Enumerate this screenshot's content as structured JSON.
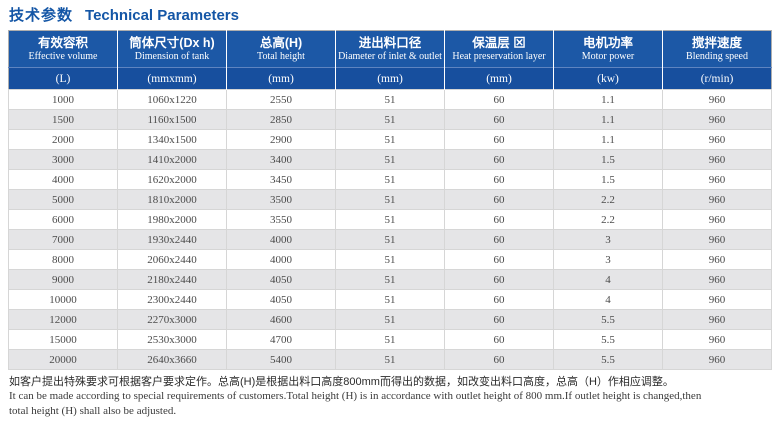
{
  "title": {
    "zh": "技术参数",
    "en": "Technical Parameters"
  },
  "colors": {
    "header_blue": "#1c58a6",
    "unit_band_blue": "#174f9e",
    "title_blue": "#1456a6",
    "row_alt_gray": "#e5e5e7",
    "cell_text": "#4b4b4b"
  },
  "table": {
    "columns": [
      {
        "zh": "有效容积",
        "en": "Effective volume",
        "unit": "(L)"
      },
      {
        "zh": "筒体尺寸(Dx h)",
        "en": "Dimension of tank",
        "unit": "(mmxmm)"
      },
      {
        "zh": "总高(H)",
        "en": "Total height",
        "unit": "(mm)"
      },
      {
        "zh": "进出料口径",
        "en": "Diameter of inlet & outlet",
        "unit": "(mm)"
      },
      {
        "zh": "保温层 ⊠",
        "en": "Heat preservation layer",
        "unit": "(mm)"
      },
      {
        "zh": "电机功率",
        "en": "Motor power",
        "unit": "(kw)"
      },
      {
        "zh": "搅拌速度",
        "en": "Blending speed",
        "unit": "(r/min)"
      }
    ],
    "rows": [
      [
        "1000",
        "1060x1220",
        "2550",
        "51",
        "60",
        "1.1",
        "960"
      ],
      [
        "1500",
        "1160x1500",
        "2850",
        "51",
        "60",
        "1.1",
        "960"
      ],
      [
        "2000",
        "1340x1500",
        "2900",
        "51",
        "60",
        "1.1",
        "960"
      ],
      [
        "3000",
        "1410x2000",
        "3400",
        "51",
        "60",
        "1.5",
        "960"
      ],
      [
        "4000",
        "1620x2000",
        "3450",
        "51",
        "60",
        "1.5",
        "960"
      ],
      [
        "5000",
        "1810x2000",
        "3500",
        "51",
        "60",
        "2.2",
        "960"
      ],
      [
        "6000",
        "1980x2000",
        "3550",
        "51",
        "60",
        "2.2",
        "960"
      ],
      [
        "7000",
        "1930x2440",
        "4000",
        "51",
        "60",
        "3",
        "960"
      ],
      [
        "8000",
        "2060x2440",
        "4000",
        "51",
        "60",
        "3",
        "960"
      ],
      [
        "9000",
        "2180x2440",
        "4050",
        "51",
        "60",
        "4",
        "960"
      ],
      [
        "10000",
        "2300x2440",
        "4050",
        "51",
        "60",
        "4",
        "960"
      ],
      [
        "12000",
        "2270x3000",
        "4600",
        "51",
        "60",
        "5.5",
        "960"
      ],
      [
        "15000",
        "2530x3000",
        "4700",
        "51",
        "60",
        "5.5",
        "960"
      ],
      [
        "20000",
        "2640x3660",
        "5400",
        "51",
        "60",
        "5.5",
        "960"
      ]
    ]
  },
  "footnote": {
    "zh": "如客户提出特殊要求可根据客户要求定作。总高(H)是根据出料口高度800mm而得出的数据，如改变出料口高度，总高（H）作相应调整。",
    "en_line1": "It can be made according to special requirements of customers.Total height (H) is in accordance with outlet height of 800 mm.If outlet height is changed,then",
    "en_line2": "total height (H) shall also be adjusted."
  }
}
